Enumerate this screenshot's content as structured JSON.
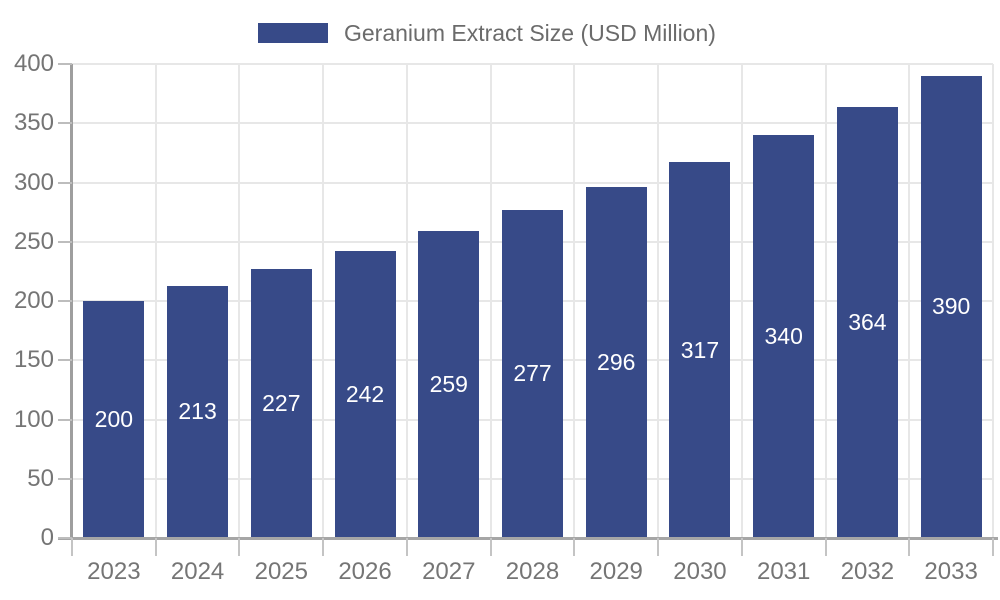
{
  "legend": {
    "label": "Geranium Extract Size (USD Million)",
    "swatch_color": "#374a88"
  },
  "chart_data": {
    "type": "bar",
    "title": "Geranium Extract Size (USD Million)",
    "categories": [
      "2023",
      "2024",
      "2025",
      "2026",
      "2027",
      "2028",
      "2029",
      "2030",
      "2031",
      "2032",
      "2033"
    ],
    "values": [
      200,
      213,
      227,
      242,
      259,
      277,
      296,
      317,
      340,
      364,
      390
    ],
    "series_name": "Geranium Extract Size (USD Million)",
    "xlabel": "",
    "ylabel": "",
    "ylim": [
      0,
      400
    ],
    "yticks": [
      0,
      50,
      100,
      150,
      200,
      250,
      300,
      350,
      400
    ],
    "grid": true,
    "legend_position": "top-center",
    "value_labels": "inside-center",
    "colors": {
      "bar": "#374a88",
      "value_label": "#ffffff",
      "gridline": "#e7e7e7",
      "axis_line": "#a6a6a6",
      "tick": "#bdbdbd",
      "tick_label": "#757575",
      "legend_text": "#6b6b6b",
      "background": "#ffffff"
    }
  }
}
